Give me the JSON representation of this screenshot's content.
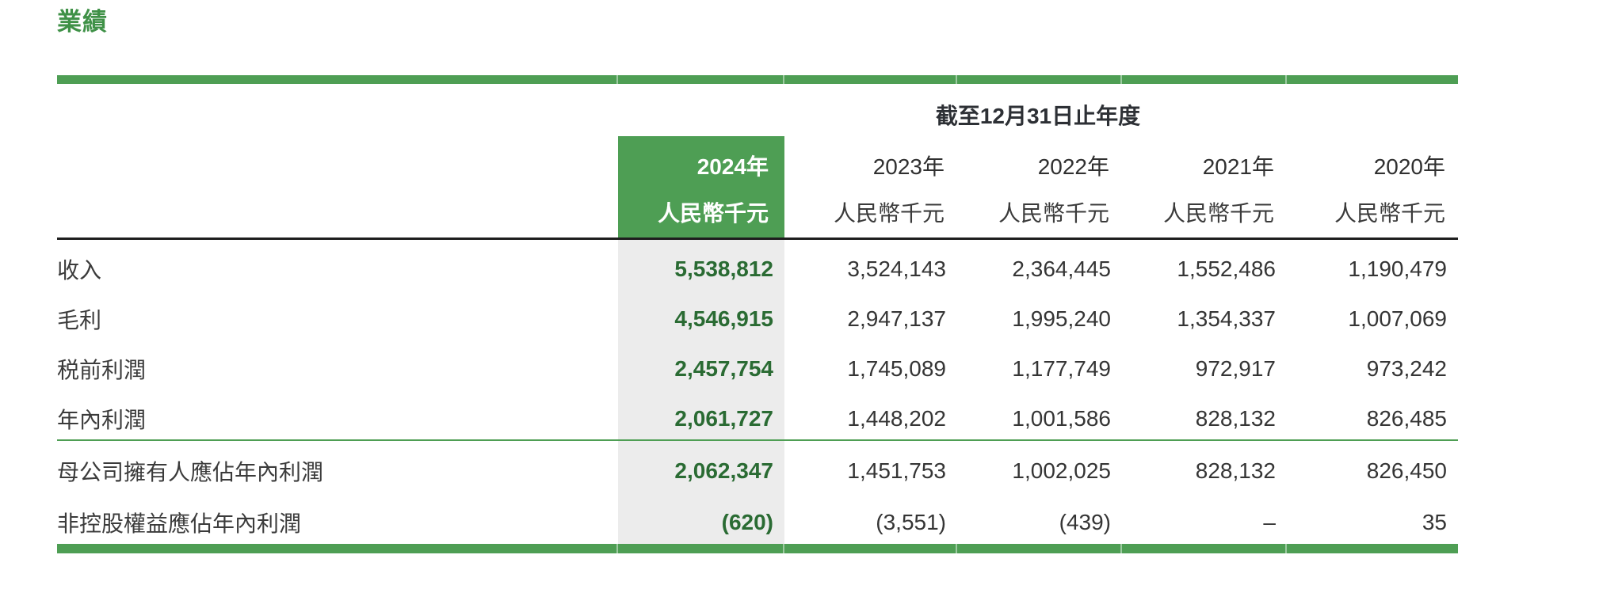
{
  "page_title": "業績",
  "table": {
    "header_span": "截至12月31日止年度",
    "columns": [
      {
        "year": "2024年",
        "unit": "人民幣千元",
        "highlighted": true
      },
      {
        "year": "2023年",
        "unit": "人民幣千元",
        "highlighted": false
      },
      {
        "year": "2022年",
        "unit": "人民幣千元",
        "highlighted": false
      },
      {
        "year": "2021年",
        "unit": "人民幣千元",
        "highlighted": false
      },
      {
        "year": "2020年",
        "unit": "人民幣千元",
        "highlighted": false
      }
    ],
    "rows": [
      {
        "label": "收入",
        "values": [
          "5,538,812",
          "3,524,143",
          "2,364,445",
          "1,552,486",
          "1,190,479"
        ]
      },
      {
        "label": "毛利",
        "values": [
          "4,546,915",
          "2,947,137",
          "1,995,240",
          "1,354,337",
          "1,007,069"
        ]
      },
      {
        "label": "税前利潤",
        "values": [
          "2,457,754",
          "1,745,089",
          "1,177,749",
          "972,917",
          "973,242"
        ]
      },
      {
        "label": "年內利潤",
        "values": [
          "2,061,727",
          "1,448,202",
          "1,001,586",
          "828,132",
          "826,485"
        ]
      },
      {
        "label": "母公司擁有人應佔年內利潤",
        "values": [
          "2,062,347",
          "1,451,753",
          "1,002,025",
          "828,132",
          "826,450"
        ]
      },
      {
        "label": "非控股權益應佔年內利潤",
        "values": [
          "(620)",
          "(3,551)",
          "(439)",
          "–",
          "35"
        ]
      }
    ]
  },
  "colors": {
    "accent_green": "#4e9e54",
    "title_green": "#3f9147",
    "highlight_number_green": "#2a6b33",
    "highlight_column_bg": "#ececec",
    "header_rule_dark": "#1e1e1e"
  }
}
